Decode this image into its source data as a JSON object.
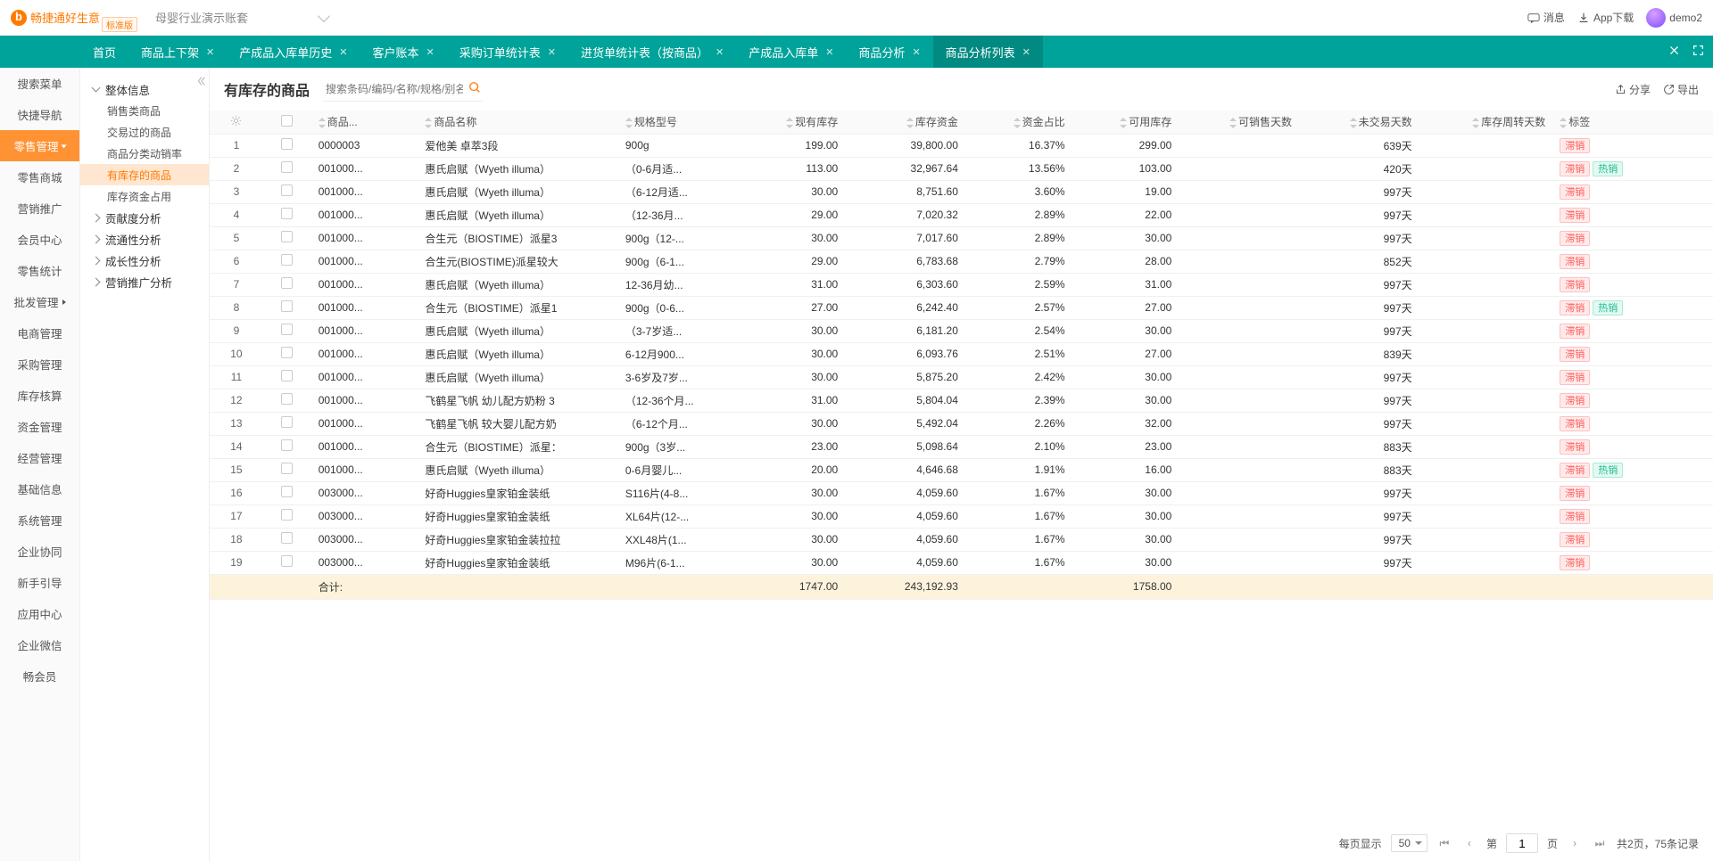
{
  "header": {
    "logo_text": "畅捷通好生意",
    "edition": "标准版",
    "account_name": "母婴行业演示账套",
    "msg": "消息",
    "app_download": "App下载",
    "user": "demo2"
  },
  "tabs": [
    {
      "label": "首页",
      "closable": false
    },
    {
      "label": "商品上下架",
      "closable": true
    },
    {
      "label": "产成品入库单历史",
      "closable": true
    },
    {
      "label": "客户账本",
      "closable": true
    },
    {
      "label": "采购订单统计表",
      "closable": true
    },
    {
      "label": "进货单统计表（按商品）",
      "closable": true
    },
    {
      "label": "产成品入库单",
      "closable": true
    },
    {
      "label": "商品分析",
      "closable": true
    },
    {
      "label": "商品分析列表",
      "closable": true,
      "active": true
    }
  ],
  "left_nav": [
    {
      "label": "搜索菜单"
    },
    {
      "label": "快捷导航"
    },
    {
      "label": "零售管理",
      "active": true,
      "expandable": true
    },
    {
      "label": "零售商城"
    },
    {
      "label": "营销推广"
    },
    {
      "label": "会员中心"
    },
    {
      "label": "零售统计"
    },
    {
      "label": "批发管理",
      "expandable": true
    },
    {
      "label": "电商管理"
    },
    {
      "label": "采购管理"
    },
    {
      "label": "库存核算"
    },
    {
      "label": "资金管理"
    },
    {
      "label": "经营管理"
    },
    {
      "label": "基础信息"
    },
    {
      "label": "系统管理"
    },
    {
      "label": "企业协同"
    },
    {
      "label": "新手引导"
    },
    {
      "label": "应用中心"
    },
    {
      "label": "企业微信"
    },
    {
      "label": "畅会员"
    }
  ],
  "second_nav": {
    "groups": [
      {
        "label": "整体信息",
        "open": true,
        "items": [
          {
            "label": "销售类商品"
          },
          {
            "label": "交易过的商品"
          },
          {
            "label": "商品分类动销率"
          },
          {
            "label": "有库存的商品",
            "active": true
          },
          {
            "label": "库存资金占用"
          }
        ]
      },
      {
        "label": "贡献度分析",
        "open": false
      },
      {
        "label": "流通性分析",
        "open": false
      },
      {
        "label": "成长性分析",
        "open": false
      },
      {
        "label": "营销推广分析",
        "open": false
      }
    ]
  },
  "content": {
    "title": "有库存的商品",
    "search_placeholder": "搜索条码/编码/名称/规格/别名",
    "share": "分享",
    "export": "导出"
  },
  "columns": [
    "商品...",
    "商品名称",
    "规格型号",
    "现有库存",
    "库存资金",
    "资金占比",
    "可用库存",
    "可销售天数",
    "未交易天数",
    "库存周转天数",
    "标签"
  ],
  "rows": [
    {
      "idx": 1,
      "code": "0000003",
      "name": "爱他美 卓萃3段",
      "spec": "900g",
      "stock": "199.00",
      "fund": "39,800.00",
      "pct": "16.37%",
      "avail": "299.00",
      "salable": "",
      "notx": "639天",
      "turn": "",
      "tags": [
        "滞销"
      ]
    },
    {
      "idx": 2,
      "code": "001000...",
      "name": "惠氏启赋（Wyeth illuma）",
      "spec": "（0-6月适...",
      "stock": "113.00",
      "fund": "32,967.64",
      "pct": "13.56%",
      "avail": "103.00",
      "salable": "",
      "notx": "420天",
      "turn": "",
      "tags": [
        "滞销",
        "热销"
      ]
    },
    {
      "idx": 3,
      "code": "001000...",
      "name": "惠氏启赋（Wyeth illuma）",
      "spec": "（6-12月适...",
      "stock": "30.00",
      "fund": "8,751.60",
      "pct": "3.60%",
      "avail": "19.00",
      "salable": "",
      "notx": "997天",
      "turn": "",
      "tags": [
        "滞销"
      ]
    },
    {
      "idx": 4,
      "code": "001000...",
      "name": "惠氏启赋（Wyeth illuma）",
      "spec": "（12-36月...",
      "stock": "29.00",
      "fund": "7,020.32",
      "pct": "2.89%",
      "avail": "22.00",
      "salable": "",
      "notx": "997天",
      "turn": "",
      "tags": [
        "滞销"
      ]
    },
    {
      "idx": 5,
      "code": "001000...",
      "name": "合生元（BIOSTIME）派星3",
      "spec": "900g（12-...",
      "stock": "30.00",
      "fund": "7,017.60",
      "pct": "2.89%",
      "avail": "30.00",
      "salable": "",
      "notx": "997天",
      "turn": "",
      "tags": [
        "滞销"
      ]
    },
    {
      "idx": 6,
      "code": "001000...",
      "name": "合生元(BIOSTIME)派星较大",
      "spec": "900g（6-1...",
      "stock": "29.00",
      "fund": "6,783.68",
      "pct": "2.79%",
      "avail": "28.00",
      "salable": "",
      "notx": "852天",
      "turn": "",
      "tags": [
        "滞销"
      ]
    },
    {
      "idx": 7,
      "code": "001000...",
      "name": "惠氏启赋（Wyeth illuma）",
      "spec": "12-36月幼...",
      "stock": "31.00",
      "fund": "6,303.60",
      "pct": "2.59%",
      "avail": "31.00",
      "salable": "",
      "notx": "997天",
      "turn": "",
      "tags": [
        "滞销"
      ]
    },
    {
      "idx": 8,
      "code": "001000...",
      "name": "合生元（BIOSTIME）派星1",
      "spec": "900g（0-6...",
      "stock": "27.00",
      "fund": "6,242.40",
      "pct": "2.57%",
      "avail": "27.00",
      "salable": "",
      "notx": "997天",
      "turn": "",
      "tags": [
        "滞销",
        "热销"
      ]
    },
    {
      "idx": 9,
      "code": "001000...",
      "name": "惠氏启赋（Wyeth illuma）",
      "spec": "（3-7岁适...",
      "stock": "30.00",
      "fund": "6,181.20",
      "pct": "2.54%",
      "avail": "30.00",
      "salable": "",
      "notx": "997天",
      "turn": "",
      "tags": [
        "滞销"
      ]
    },
    {
      "idx": 10,
      "code": "001000...",
      "name": "惠氏启赋（Wyeth illuma）",
      "spec": "6-12月900...",
      "stock": "30.00",
      "fund": "6,093.76",
      "pct": "2.51%",
      "avail": "27.00",
      "salable": "",
      "notx": "839天",
      "turn": "",
      "tags": [
        "滞销"
      ]
    },
    {
      "idx": 11,
      "code": "001000...",
      "name": "惠氏启赋（Wyeth illuma）",
      "spec": "3-6岁及7岁...",
      "stock": "30.00",
      "fund": "5,875.20",
      "pct": "2.42%",
      "avail": "30.00",
      "salable": "",
      "notx": "997天",
      "turn": "",
      "tags": [
        "滞销"
      ]
    },
    {
      "idx": 12,
      "code": "001000...",
      "name": "飞鹤星飞帆 幼儿配方奶粉 3",
      "spec": "（12-36个月...",
      "stock": "31.00",
      "fund": "5,804.04",
      "pct": "2.39%",
      "avail": "30.00",
      "salable": "",
      "notx": "997天",
      "turn": "",
      "tags": [
        "滞销"
      ]
    },
    {
      "idx": 13,
      "code": "001000...",
      "name": "飞鹤星飞帆 较大婴儿配方奶",
      "spec": "（6-12个月...",
      "stock": "30.00",
      "fund": "5,492.04",
      "pct": "2.26%",
      "avail": "32.00",
      "salable": "",
      "notx": "997天",
      "turn": "",
      "tags": [
        "滞销"
      ]
    },
    {
      "idx": 14,
      "code": "001000...",
      "name": "合生元（BIOSTIME）派星：",
      "spec": "900g（3岁...",
      "stock": "23.00",
      "fund": "5,098.64",
      "pct": "2.10%",
      "avail": "23.00",
      "salable": "",
      "notx": "883天",
      "turn": "",
      "tags": [
        "滞销"
      ]
    },
    {
      "idx": 15,
      "code": "001000...",
      "name": "惠氏启赋（Wyeth illuma）",
      "spec": "0-6月婴儿...",
      "stock": "20.00",
      "fund": "4,646.68",
      "pct": "1.91%",
      "avail": "16.00",
      "salable": "",
      "notx": "883天",
      "turn": "",
      "tags": [
        "滞销",
        "热销"
      ]
    },
    {
      "idx": 16,
      "code": "003000...",
      "name": "好奇Huggies皇家铂金装纸",
      "spec": "S116片(4-8...",
      "stock": "30.00",
      "fund": "4,059.60",
      "pct": "1.67%",
      "avail": "30.00",
      "salable": "",
      "notx": "997天",
      "turn": "",
      "tags": [
        "滞销"
      ]
    },
    {
      "idx": 17,
      "code": "003000...",
      "name": "好奇Huggies皇家铂金装纸",
      "spec": "XL64片(12-...",
      "stock": "30.00",
      "fund": "4,059.60",
      "pct": "1.67%",
      "avail": "30.00",
      "salable": "",
      "notx": "997天",
      "turn": "",
      "tags": [
        "滞销"
      ]
    },
    {
      "idx": 18,
      "code": "003000...",
      "name": "好奇Huggies皇家铂金装拉拉",
      "spec": "XXL48片(1...",
      "stock": "30.00",
      "fund": "4,059.60",
      "pct": "1.67%",
      "avail": "30.00",
      "salable": "",
      "notx": "997天",
      "turn": "",
      "tags": [
        "滞销"
      ]
    },
    {
      "idx": 19,
      "code": "003000...",
      "name": "好奇Huggies皇家铂金装纸",
      "spec": "M96片(6-1...",
      "stock": "30.00",
      "fund": "4,059.60",
      "pct": "1.67%",
      "avail": "30.00",
      "salable": "",
      "notx": "997天",
      "turn": "",
      "tags": [
        "滞销"
      ]
    }
  ],
  "totals": {
    "label": "合计:",
    "stock": "1747.00",
    "fund": "243,192.93",
    "avail": "1758.00"
  },
  "pager": {
    "per_page_label": "每页显示",
    "per_page_value": "50",
    "page_label_prefix": "第",
    "page_value": "1",
    "page_label_suffix": "页",
    "summary": "共2页，75条记录"
  },
  "colors": {
    "primary": "#00a39a",
    "accent": "#ff7a00",
    "nav_active": "#ff9233",
    "sub_active_bg": "#ffe6d1",
    "totals_bg": "#fdf3dc",
    "tag_zhi_bg": "#ffeaea",
    "tag_zhi_fg": "#ff5c5c",
    "tag_re_bg": "#e3f9f2",
    "tag_re_fg": "#1fbf8f"
  }
}
